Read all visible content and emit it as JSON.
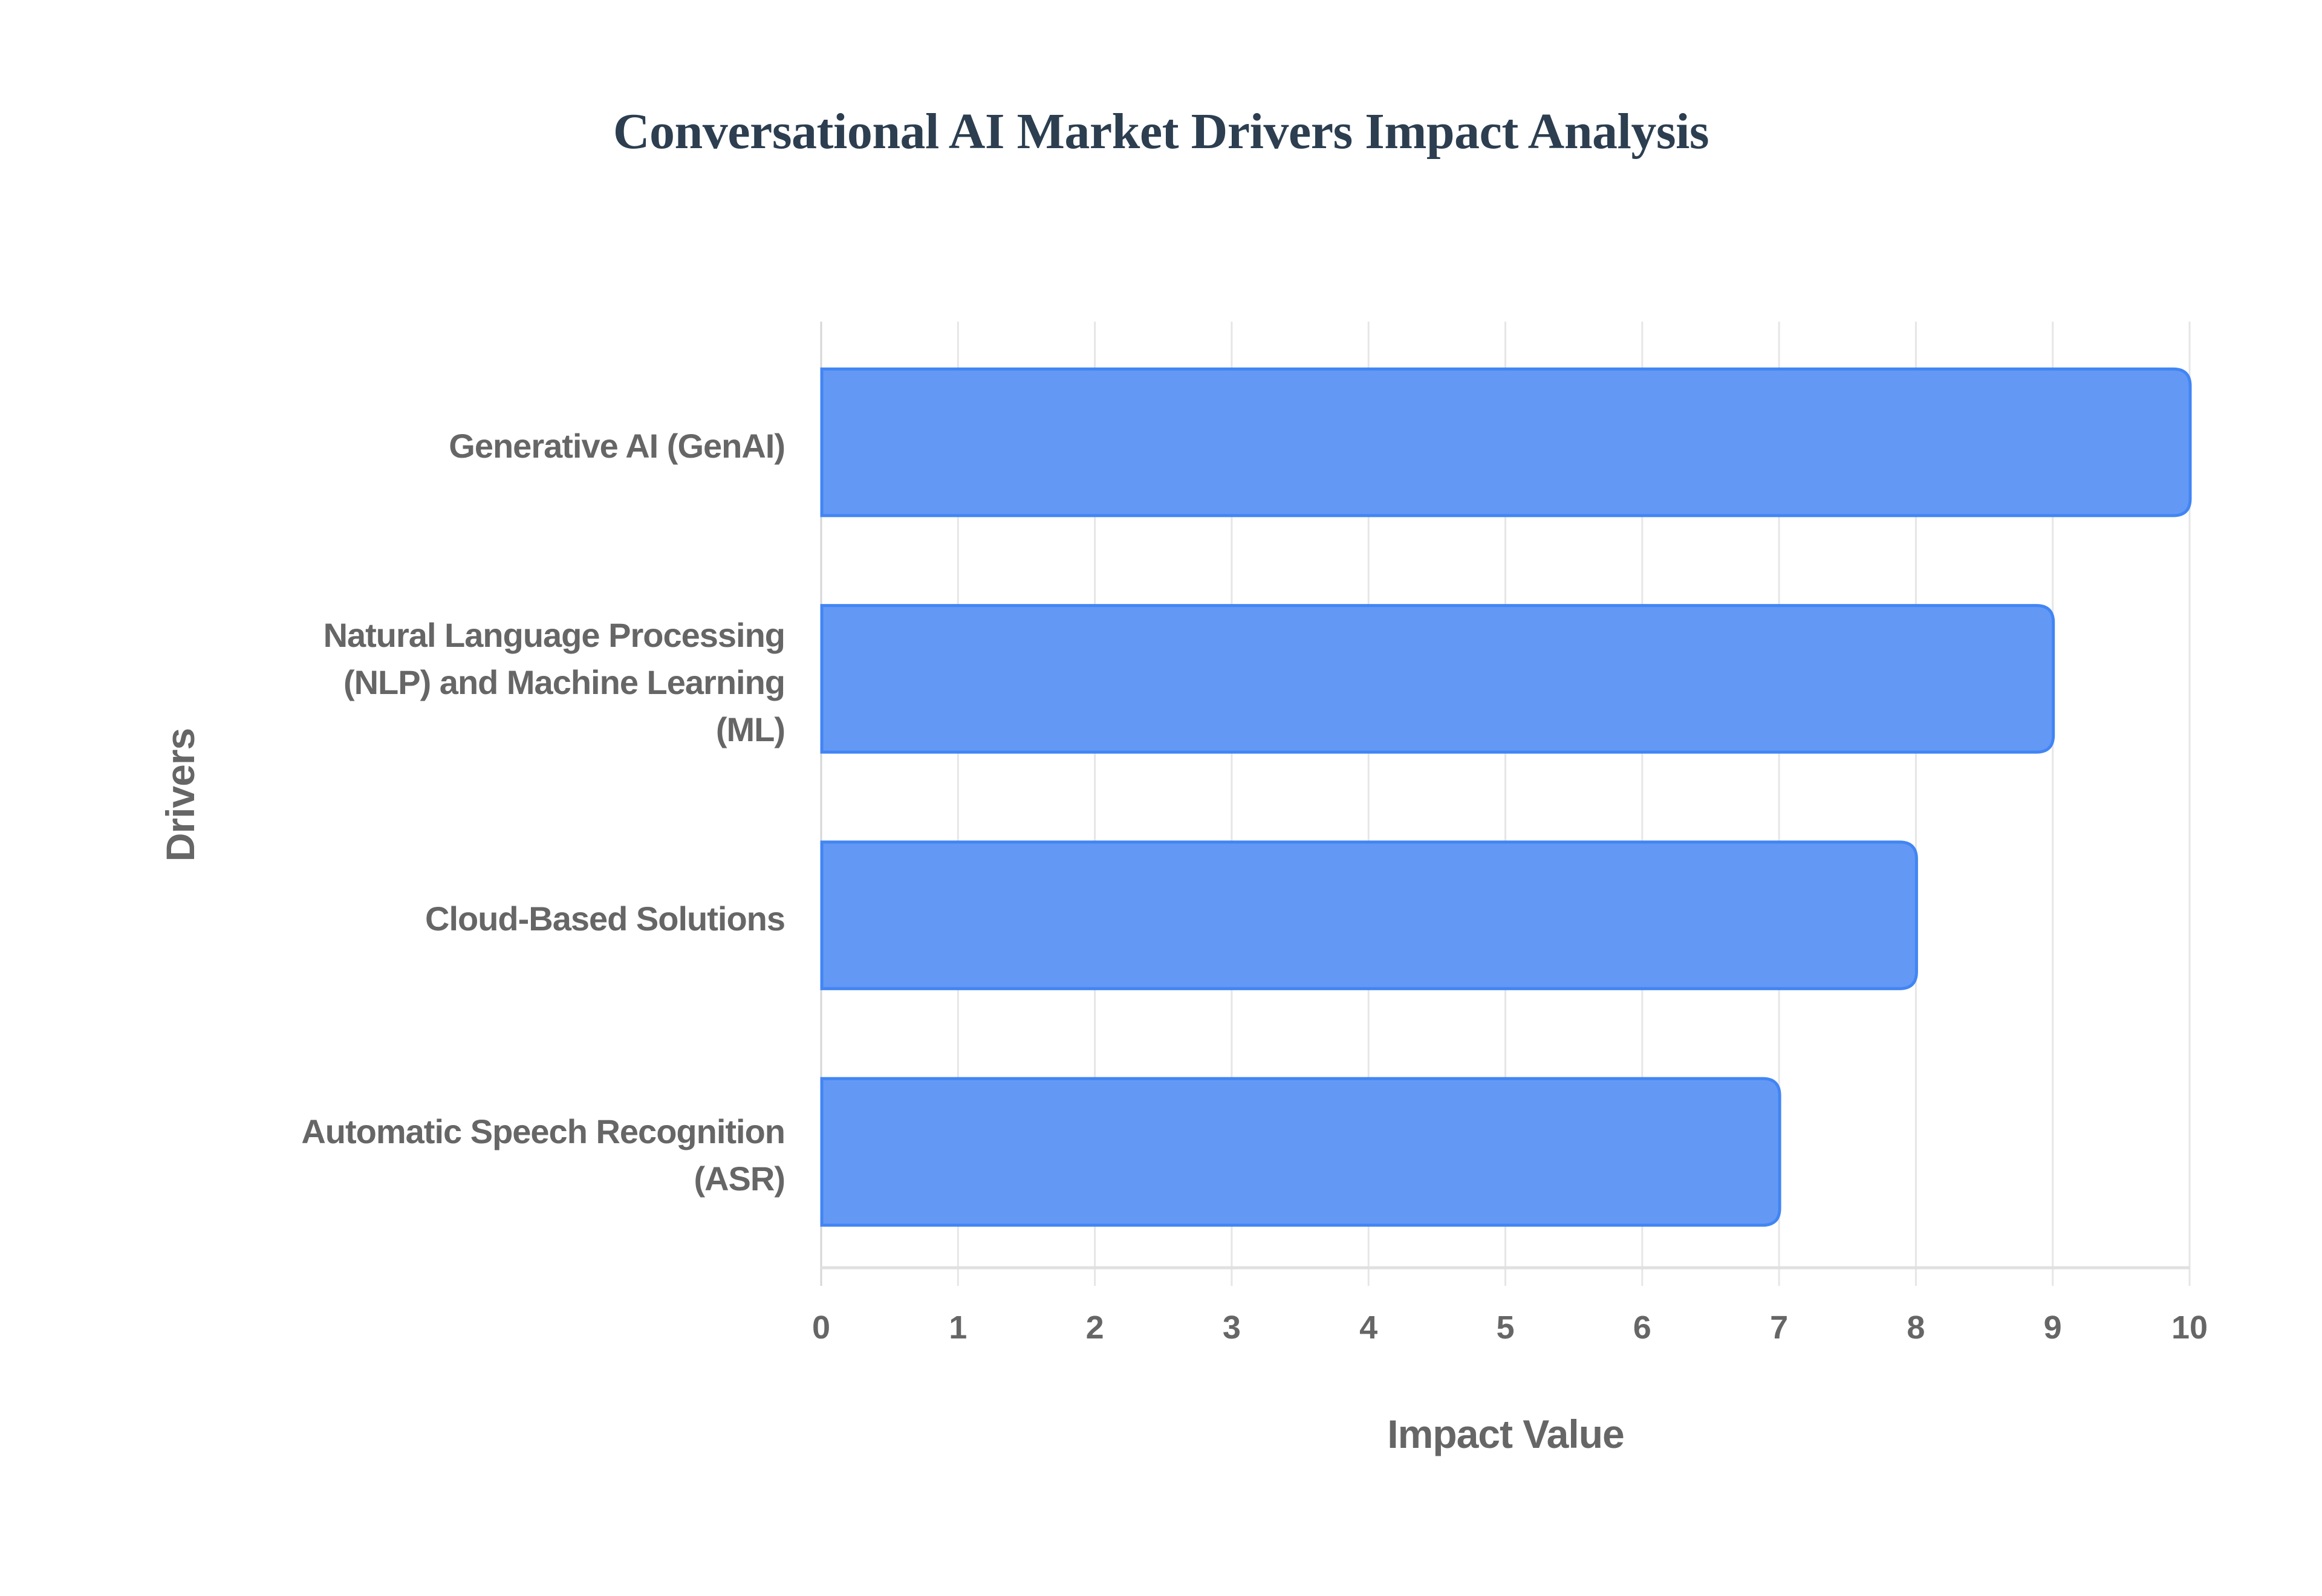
{
  "title": "Conversational AI Market Drivers Impact Analysis",
  "colors": {
    "bar_fill": "#6399f4",
    "bar_border": "#4285f4",
    "grid": "#e6e6e6",
    "axis_line": "#e0e0e0",
    "label_text": "#666666",
    "title_text": "#2c3e50"
  },
  "chart_data": {
    "type": "bar",
    "orientation": "horizontal",
    "title": "Conversational AI Market Drivers Impact Analysis",
    "xlabel": "Impact Value",
    "ylabel": "Drivers",
    "categories": [
      "Generative AI (GenAI)",
      "Natural Language Processing (NLP) and Machine Learning (ML)",
      "Cloud-Based Solutions",
      "Automatic Speech Recognition (ASR)"
    ],
    "category_label_lines": [
      [
        "Generative AI (GenAI)"
      ],
      [
        "Natural Language Processing",
        "(NLP) and Machine Learning",
        "(ML)"
      ],
      [
        "Cloud-Based Solutions"
      ],
      [
        "Automatic Speech Recognition",
        "(ASR)"
      ]
    ],
    "values": [
      10,
      9,
      8,
      7
    ],
    "xlim": [
      0,
      10
    ],
    "xticks": [
      "0",
      "1",
      "2",
      "3",
      "4",
      "5",
      "6",
      "7",
      "8",
      "9",
      "10"
    ],
    "grid": true,
    "legend": null
  }
}
